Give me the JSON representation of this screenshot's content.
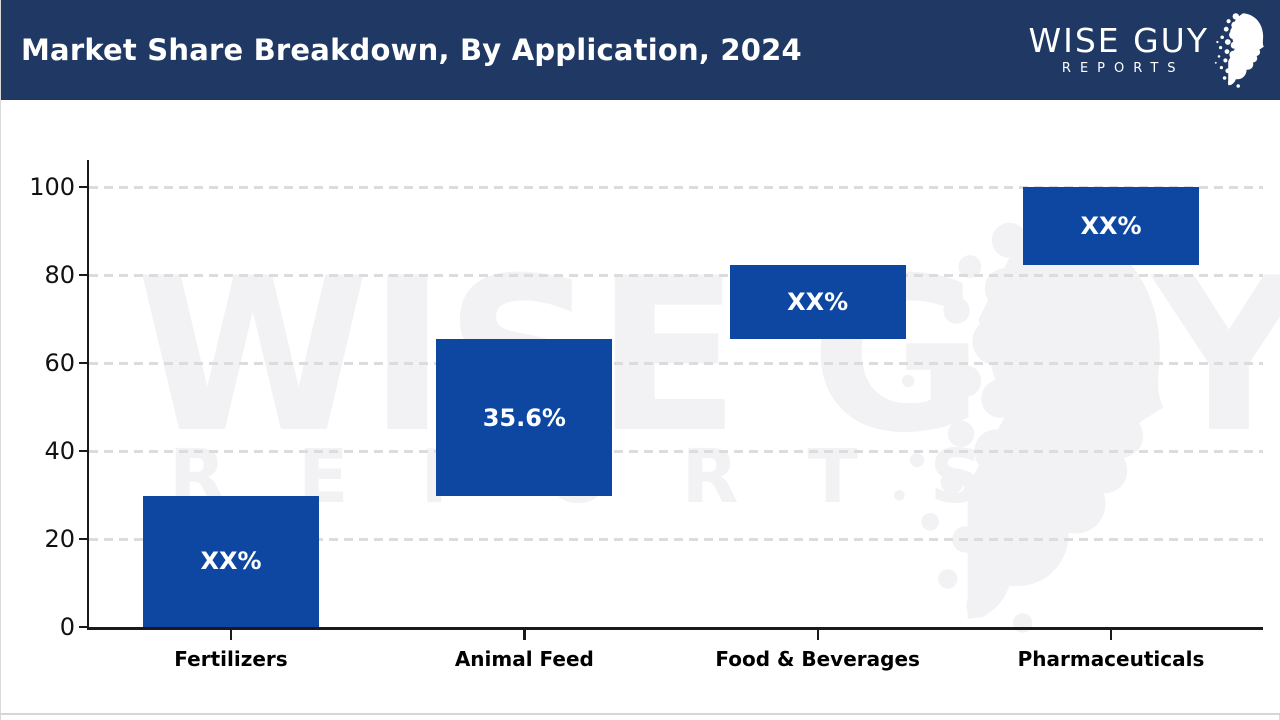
{
  "header": {
    "title": "Market Share Breakdown, By Application, 2024",
    "logo": {
      "line1": "WISE GUY",
      "line2": "REPORTS"
    }
  },
  "watermark": {
    "line1": "WISE GUY",
    "line2": "REPORTS"
  },
  "colors": {
    "header_bg": "#1f3864",
    "bar": "#0d47a1",
    "bar_label": "#ffffff",
    "gridline": "#dcdcdc",
    "axis": "#1a1a1a",
    "tick_label": "#111111",
    "category_label": "#000000",
    "watermark": "#f2f2f4"
  },
  "chart_data": {
    "type": "bar",
    "subtype": "waterfall",
    "title": "Market Share Breakdown, By Application, 2024",
    "categories": [
      "Fertilizers",
      "Animal Feed",
      "Food & Beverages",
      "Pharmaceuticals"
    ],
    "bars": [
      {
        "category": "Fertilizers",
        "start": 0,
        "end": 29.8,
        "label": "XX%"
      },
      {
        "category": "Animal Feed",
        "start": 29.8,
        "end": 65.4,
        "label": "35.6%",
        "value": 35.6
      },
      {
        "category": "Food & Beverages",
        "start": 65.4,
        "end": 82.3,
        "label": "XX%"
      },
      {
        "category": "Pharmaceuticals",
        "start": 82.3,
        "end": 100,
        "label": "XX%"
      }
    ],
    "xlabel": "",
    "ylabel": "",
    "ylim": [
      0,
      100
    ],
    "yticks": [
      0,
      20,
      40,
      60,
      80,
      100
    ],
    "grid": "horizontal-dashed",
    "legend": "none"
  }
}
